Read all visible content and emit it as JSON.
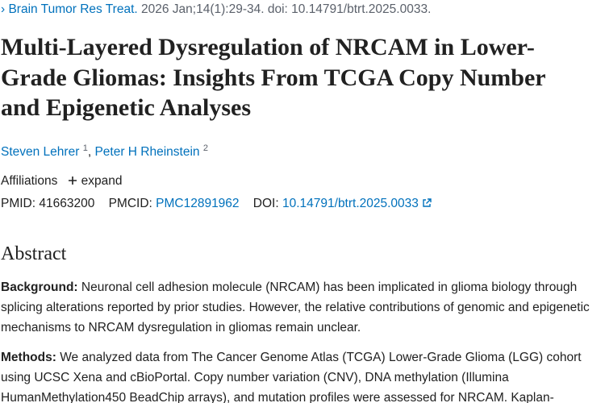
{
  "citation": {
    "journal": "Brain Tumor Res Treat.",
    "details": "2026 Jan;14(1):29-34. doi: 10.14791/btrt.2025.0033."
  },
  "title": "Multi-Layered Dysregulation of NRCAM in Lower-Grade Gliomas: Insights From TCGA Copy Number and Epigenetic Analyses",
  "authors": [
    {
      "name": "Steven Lehrer",
      "affiliation": "1"
    },
    {
      "name": "Peter H Rheinstein",
      "affiliation": "2"
    }
  ],
  "affiliations": {
    "label": "Affiliations",
    "toggle": "expand"
  },
  "identifiers": {
    "pmid_label": "PMID:",
    "pmid": "41663200",
    "pmcid_label": "PMCID:",
    "pmcid": "PMC12891962",
    "doi_label": "DOI:",
    "doi": "10.14791/btrt.2025.0033"
  },
  "abstract": {
    "heading": "Abstract",
    "sections": [
      {
        "label": "Background:",
        "text": "Neuronal cell adhesion molecule (NRCAM) has been implicated in glioma biology through splicing alterations reported by prior studies. However, the relative contributions of genomic and epigenetic mechanisms to NRCAM dysregulation in gliomas remain unclear."
      },
      {
        "label": "Methods:",
        "text": "We analyzed data from The Cancer Genome Atlas (TCGA) Lower-Grade Glioma (LGG) cohort using UCSC Xena and cBioPortal. Copy number variation (CNV), DNA methylation (Illumina HumanMethylation450 BeadChip arrays), and mutation profiles were assessed for NRCAM. Kaplan-"
      }
    ]
  }
}
